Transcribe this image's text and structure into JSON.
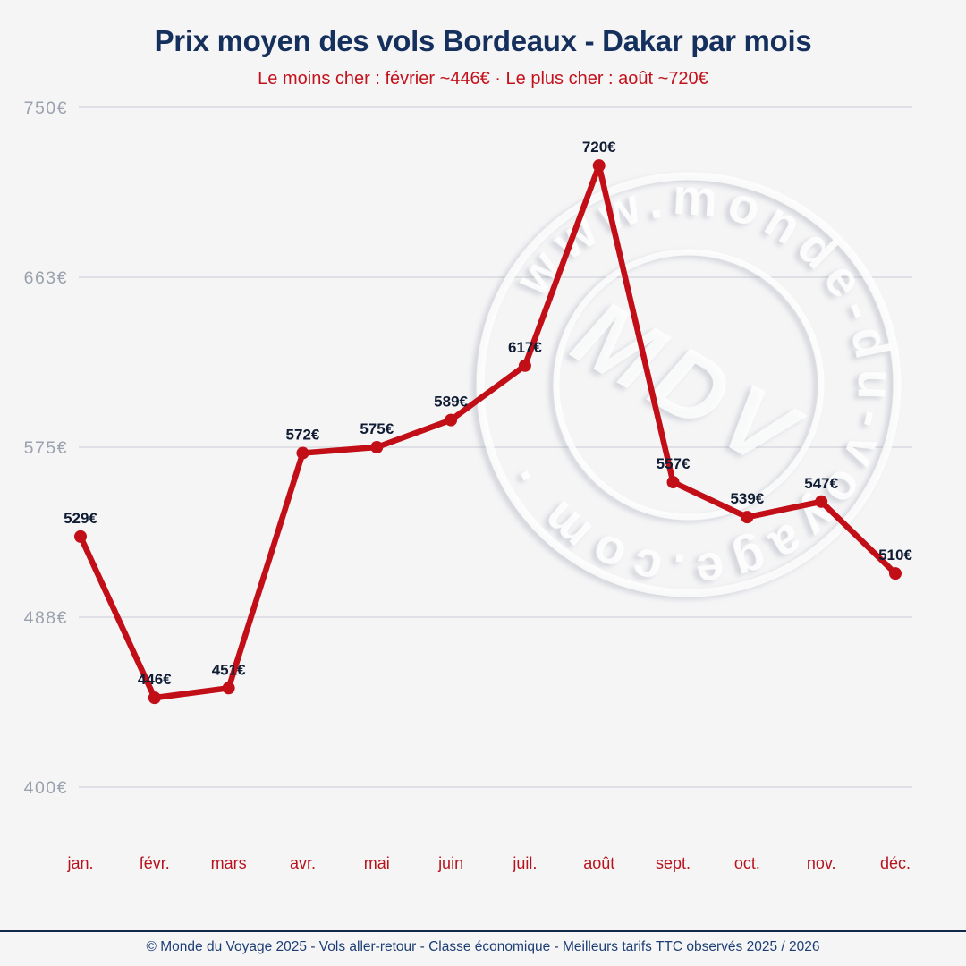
{
  "colors": {
    "background": "#f5f5f6",
    "navy": "#16305e",
    "red_text": "#c3121c",
    "line_red": "#c10e17",
    "axis_gray": "#9ba2ae",
    "grid": "#c6cad4",
    "value_label": "#0f1c33",
    "month_red": "#b8131d",
    "footer_navy": "#1d3e74",
    "footer_line": "#13294b"
  },
  "chart_data": {
    "type": "line",
    "title": "Prix moyen des vols Bordeaux - Dakar par mois",
    "subtitle": "Le moins cher : février ~446€ · Le plus cher : août ~720€",
    "categories": [
      "jan.",
      "févr.",
      "mars",
      "avr.",
      "mai",
      "juin",
      "juil.",
      "août",
      "sept.",
      "oct.",
      "nov.",
      "déc."
    ],
    "values": [
      529,
      446,
      451,
      572,
      575,
      589,
      617,
      720,
      557,
      539,
      547,
      510
    ],
    "point_labels": [
      "529€",
      "446€",
      "451€",
      "572€",
      "575€",
      "589€",
      "617€",
      "720€",
      "557€",
      "539€",
      "547€",
      "510€"
    ],
    "unit": "€",
    "xlabel": "",
    "ylabel": "",
    "ylim": [
      400,
      750
    ],
    "y_ticks": [
      {
        "value": 750,
        "label": "750€"
      },
      {
        "value": 662.5,
        "label": "663€"
      },
      {
        "value": 575,
        "label": "575€"
      },
      {
        "value": 487.5,
        "label": "488€"
      },
      {
        "value": 400,
        "label": "400€"
      }
    ],
    "grid": true,
    "legend": false,
    "line_color": "#c10e17",
    "min_point": {
      "month": "février",
      "value": 446
    },
    "max_point": {
      "month": "août",
      "value": 720
    }
  },
  "watermark": {
    "circle_text": "www.monde-du-voyage.com ·",
    "center_text": "MDV"
  },
  "footer": {
    "text": "© Monde du Voyage 2025 - Vols aller-retour - Classe économique - Meilleurs tarifs TTC observés 2025 / 2026"
  }
}
